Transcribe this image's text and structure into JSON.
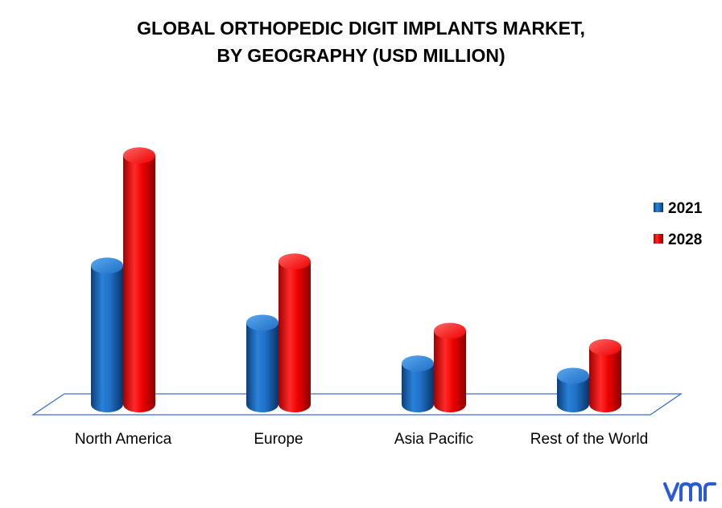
{
  "chart_data": {
    "type": "bar",
    "title": "GLOBAL ORTHOPEDIC DIGIT IMPLANTS MARKET,",
    "subtitle": "BY GEOGRAPHY (USD MILLION)",
    "xlabel": "",
    "ylabel": "",
    "categories": [
      "North America",
      "Europe",
      "Asia Pacific",
      "Rest of the World"
    ],
    "series": [
      {
        "name": "2021",
        "color": "#1f6fc5",
        "values": [
          34,
          20,
          10,
          7
        ]
      },
      {
        "name": "2028",
        "color": "#ff0000",
        "values": [
          61,
          35,
          18,
          14
        ]
      }
    ],
    "ylim": [
      0,
      65
    ],
    "grid": false,
    "legend": "right",
    "style": "3d-cylinder"
  },
  "logo": {
    "text": "vmr",
    "color": "#2a5bd7"
  }
}
